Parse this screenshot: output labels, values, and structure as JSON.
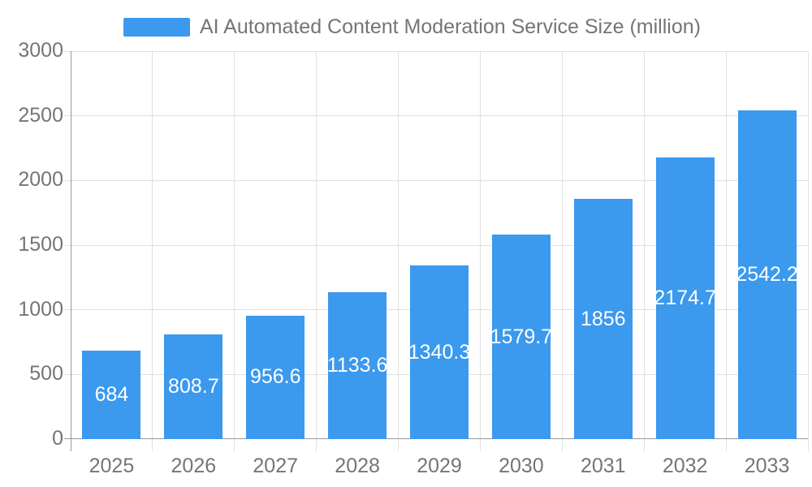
{
  "colors": {
    "bar": "#3b99ee",
    "grid": "#e0e0e0",
    "axis": "#999999",
    "tick_label": "#757575",
    "value_label": "#ffffff",
    "background": "#ffffff"
  },
  "legend": {
    "label": "AI Automated Content Moderation Service Size (million)"
  },
  "chart_data": {
    "type": "bar",
    "title": "AI Automated Content Moderation Service Size (million)",
    "categories": [
      "2025",
      "2026",
      "2027",
      "2028",
      "2029",
      "2030",
      "2031",
      "2032",
      "2033"
    ],
    "values": [
      684,
      808.7,
      956.6,
      1133.6,
      1340.3,
      1579.7,
      1856,
      2174.7,
      2542.2
    ],
    "xlabel": "",
    "ylabel": "",
    "ylim": [
      0,
      3000
    ],
    "yticks": [
      0,
      500,
      1000,
      1500,
      2000,
      2500,
      3000
    ],
    "grid": true,
    "legend_position": "top",
    "value_labels_position": "inside-center"
  }
}
